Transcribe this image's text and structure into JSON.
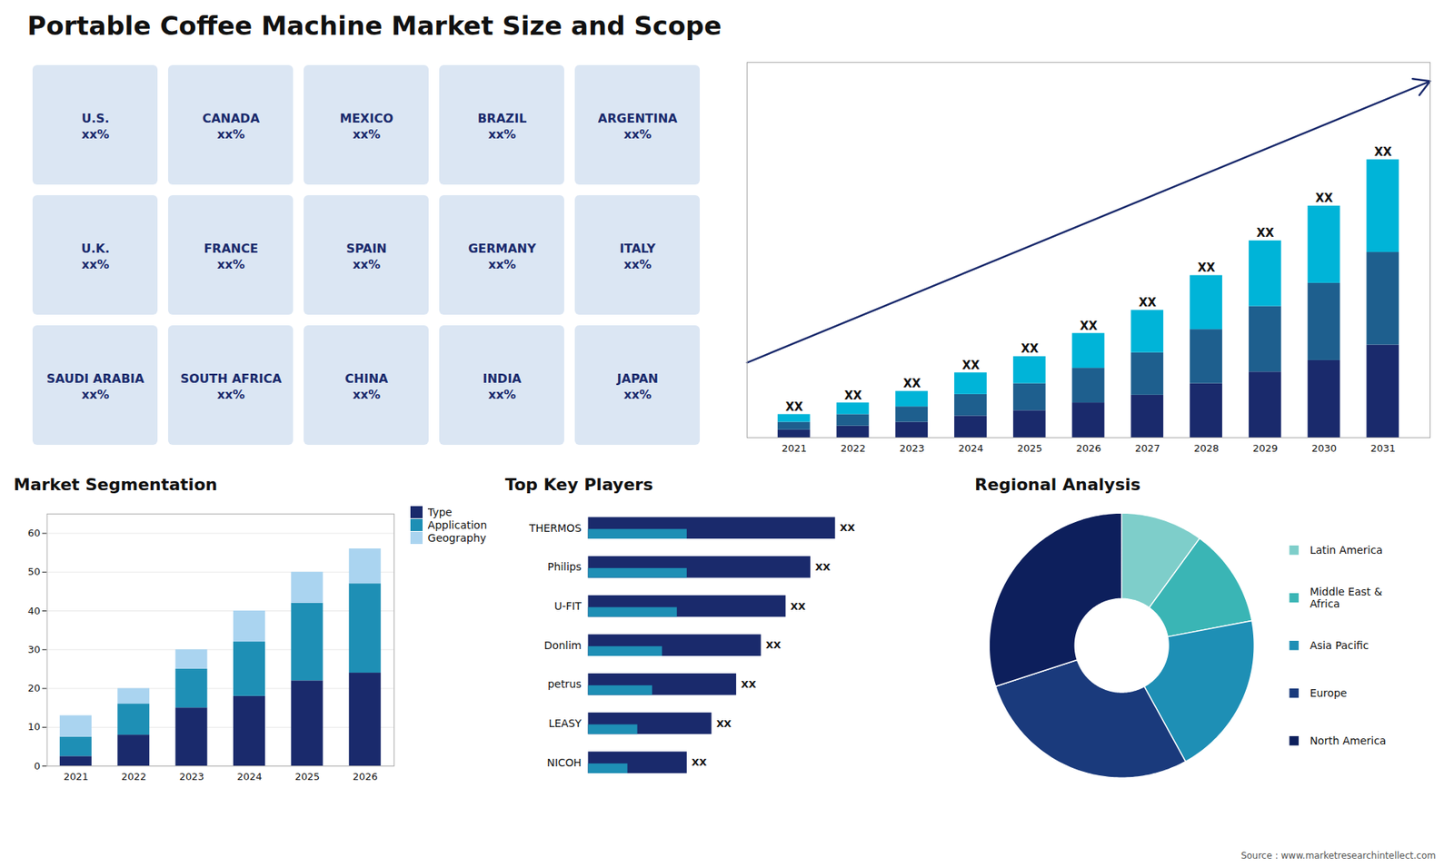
{
  "title": "Portable Coffee Machine Market Size and Scope",
  "caption": "Source : www.marketresearchintellect.com",
  "chart_data": [
    {
      "type": "map",
      "annotations": [
        "U.S.\nxx%",
        "CANADA\nxx%",
        "MEXICO\nxx%",
        "BRAZIL\nxx%",
        "ARGENTINA\nxx%",
        "U.K.\nxx%",
        "FRANCE\nxx%",
        "SPAIN\nxx%",
        "GERMANY\nxx%",
        "ITALY\nxx%",
        "SAUDI ARABIA\nxx%",
        "SOUTH AFRICA\nxx%",
        "CHINA\nxx%",
        "INDIA\nxx%",
        "JAPAN\nxx%"
      ]
    },
    {
      "type": "bar",
      "x": [
        2021,
        2022,
        2023,
        2024,
        2025,
        2026,
        2027,
        2028,
        2029,
        2030,
        2031
      ],
      "xlim": [
        2020.2,
        2031.8
      ],
      "xticks": [
        2021,
        2022,
        2023,
        2024,
        2025,
        2026,
        2027,
        2028,
        2029,
        2030,
        2031
      ],
      "ylim": [
        0,
        48.6
      ],
      "stacked": true,
      "tick_labels": "x",
      "annotations": [
        "XX",
        "XX",
        "XX",
        "XX",
        "XX",
        "XX",
        "XX",
        "XX",
        "XX",
        "XX",
        "XX"
      ],
      "series": [
        {
          "color": "#1a2a6c",
          "values": [
            1.0,
            1.5,
            2.0,
            2.8,
            3.5,
            4.5,
            5.5,
            7.0,
            8.5,
            10.0,
            12.0
          ]
        },
        {
          "color": "#1e5f8e",
          "values": [
            1.0,
            1.5,
            2.0,
            2.8,
            3.5,
            4.5,
            5.5,
            7.0,
            8.5,
            10.0,
            12.0
          ]
        },
        {
          "color": "#00b4d8",
          "values": [
            1.0,
            1.5,
            2.0,
            2.8,
            3.5,
            4.5,
            5.5,
            7.0,
            8.5,
            10.0,
            12.0
          ]
        }
      ]
    },
    {
      "type": "bar",
      "title": "Market Segmentation",
      "x": [
        2021,
        2022,
        2023,
        2024,
        2025,
        2026
      ],
      "xlim": [
        2020.5,
        2026.5
      ],
      "xticks": [
        2021,
        2022,
        2023,
        2024,
        2025,
        2026
      ],
      "ylim": [
        0,
        65
      ],
      "yticks": [
        0,
        10,
        20,
        30,
        40,
        50,
        60
      ],
      "grid": true,
      "stacked": true,
      "legend": "right",
      "series": [
        {
          "name": "Type",
          "color": "#1a2a6c",
          "values": [
            2.5,
            8.0,
            15.0,
            18.0,
            22.0,
            24.0
          ]
        },
        {
          "name": "Application",
          "color": "#1e8fb5",
          "values": [
            5.0,
            8.0,
            10.0,
            14.0,
            20.0,
            23.0
          ]
        },
        {
          "name": "Geography",
          "color": "#aad4f0",
          "values": [
            5.5,
            4.0,
            5.0,
            8.0,
            8.0,
            9.0
          ]
        }
      ]
    },
    {
      "type": "bar",
      "title": "Top Key Players",
      "orientation": "horizontal",
      "stacked": false,
      "categories": [
        "THERMOS",
        "Philips",
        "U-FIT",
        "Donlim",
        "petrus",
        "LEASY",
        "NICOH"
      ],
      "xlim": [
        0,
        7
      ],
      "tick_labels": "y",
      "annotations": [
        "XX",
        "XX",
        "XX",
        "XX",
        "XX",
        "XX",
        "XX"
      ],
      "series": [
        {
          "color": "#1a2a6c",
          "values": [
            5,
            4.5,
            4,
            3.5,
            3,
            2.5,
            2.0
          ]
        },
        {
          "color": "#1e8fb5",
          "values": [
            2,
            2.0,
            1.8,
            1.5,
            1.3,
            1.0,
            0.8
          ]
        }
      ]
    },
    {
      "type": "pie",
      "title": "Regional Analysis",
      "categories": [
        "Latin America",
        "Middle East &\nAfrica",
        "Asia Pacific",
        "Europe",
        "North America"
      ],
      "values": [
        10,
        12,
        20,
        28,
        30
      ],
      "colors": [
        "#7ececa",
        "#3ab5b5",
        "#1e8fb5",
        "#1a3a7c",
        "#0d1f5c"
      ],
      "legend": "right"
    }
  ]
}
